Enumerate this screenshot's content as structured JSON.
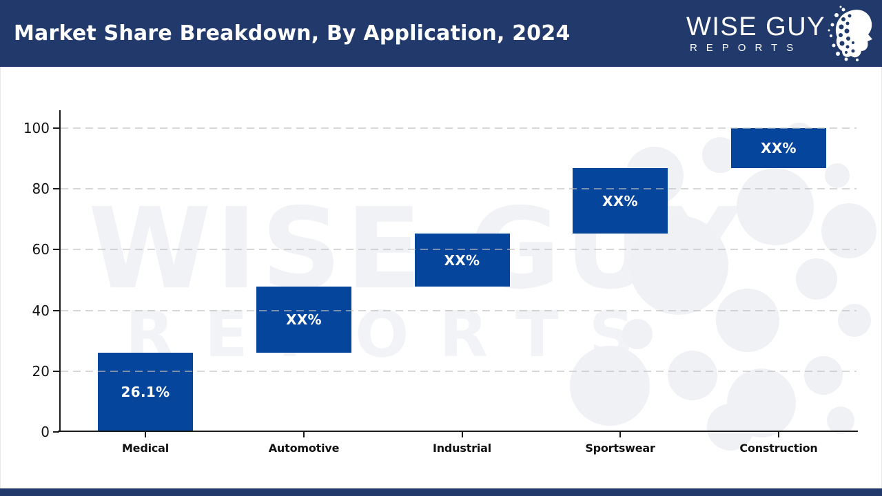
{
  "header": {
    "title": "Market Share Breakdown, By Application, 2024",
    "logo": {
      "primary": "WISE GUY",
      "secondary": "REPORTS"
    }
  },
  "watermark": {
    "line1": "WISE GUY",
    "line2": "REPORTS"
  },
  "colors": {
    "header_bg": "#213a6b",
    "footer_bg": "#213a6b",
    "bar_fill": "#05459c",
    "bar_label_text": "#ffffff",
    "axis_line": "#1a1a1a",
    "tick_text": "#111111",
    "gridline": "#d9d9d9",
    "watermark_tint": "#f1f2f5"
  },
  "chart_data": {
    "type": "bar",
    "variant": "floating-waterfall",
    "title": "Market Share Breakdown, By Application, 2024",
    "xlabel": "",
    "ylabel": "",
    "categories": [
      "Medical",
      "Automotive",
      "Industrial",
      "Sportswear",
      "Construction"
    ],
    "segments": [
      {
        "category": "Medical",
        "start": 0,
        "end": 26.1,
        "label": "26.1%"
      },
      {
        "category": "Automotive",
        "start": 26.1,
        "end": 47.8,
        "label": "XX%"
      },
      {
        "category": "Industrial",
        "start": 47.8,
        "end": 65.3,
        "label": "XX%"
      },
      {
        "category": "Sportswear",
        "start": 65.3,
        "end": 86.8,
        "label": "XX%"
      },
      {
        "category": "Construction",
        "start": 86.8,
        "end": 100,
        "label": "XX%"
      }
    ],
    "yticks": [
      0,
      20,
      40,
      60,
      80,
      100
    ],
    "ylim": [
      0,
      105.9
    ],
    "grid": "horizontal-dashed",
    "legend": "none"
  }
}
